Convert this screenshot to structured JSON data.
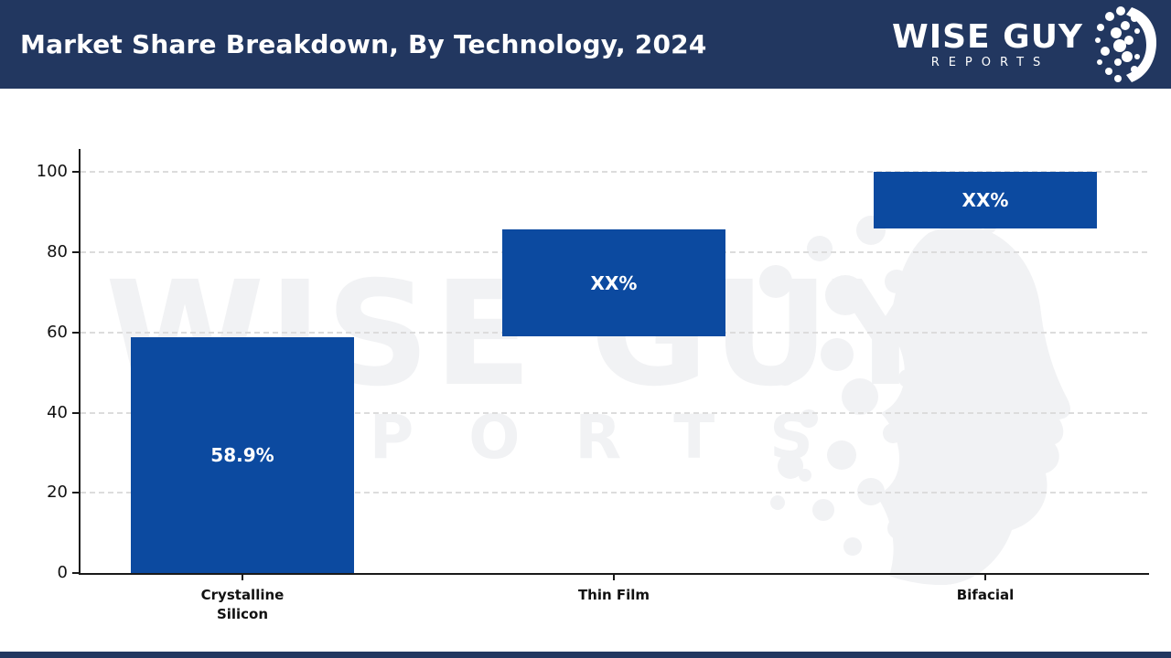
{
  "header": {
    "title": "Market Share Breakdown, By Technology, 2024",
    "logo": {
      "line1": "WISE GUY",
      "line2": "REPORTS"
    }
  },
  "watermark": {
    "line1": "WISE GUY",
    "line2": "REPORTS"
  },
  "colors": {
    "header_bg": "#223760",
    "footer_bg": "#223760",
    "bar": "#0c4aa0",
    "grid": "#dcdcdc",
    "axis": "#1a1a1a",
    "tick_label": "#111111",
    "bar_label": "#ffffff",
    "watermark": "#f1f2f4"
  },
  "chart_data": {
    "type": "bar",
    "subtype": "stacked-waterfall",
    "title": "Market Share Breakdown, By Technology, 2024",
    "categories": [
      "Crystalline Silicon",
      "Thin Film",
      "Bifacial"
    ],
    "segments": [
      {
        "category": "Crystalline Silicon",
        "start": 0,
        "end": 58.9,
        "label": "58.9%"
      },
      {
        "category": "Thin Film",
        "start": 59.0,
        "end": 85.7,
        "label": "XX%"
      },
      {
        "category": "Bifacial",
        "start": 86.0,
        "end": 100.0,
        "label": "XX%"
      }
    ],
    "yticks": [
      0,
      20,
      40,
      60,
      80,
      100
    ],
    "ylim": [
      0,
      105.8
    ],
    "grid": "horizontal-dashed",
    "legend": "none",
    "xlabel": "",
    "ylabel": ""
  }
}
